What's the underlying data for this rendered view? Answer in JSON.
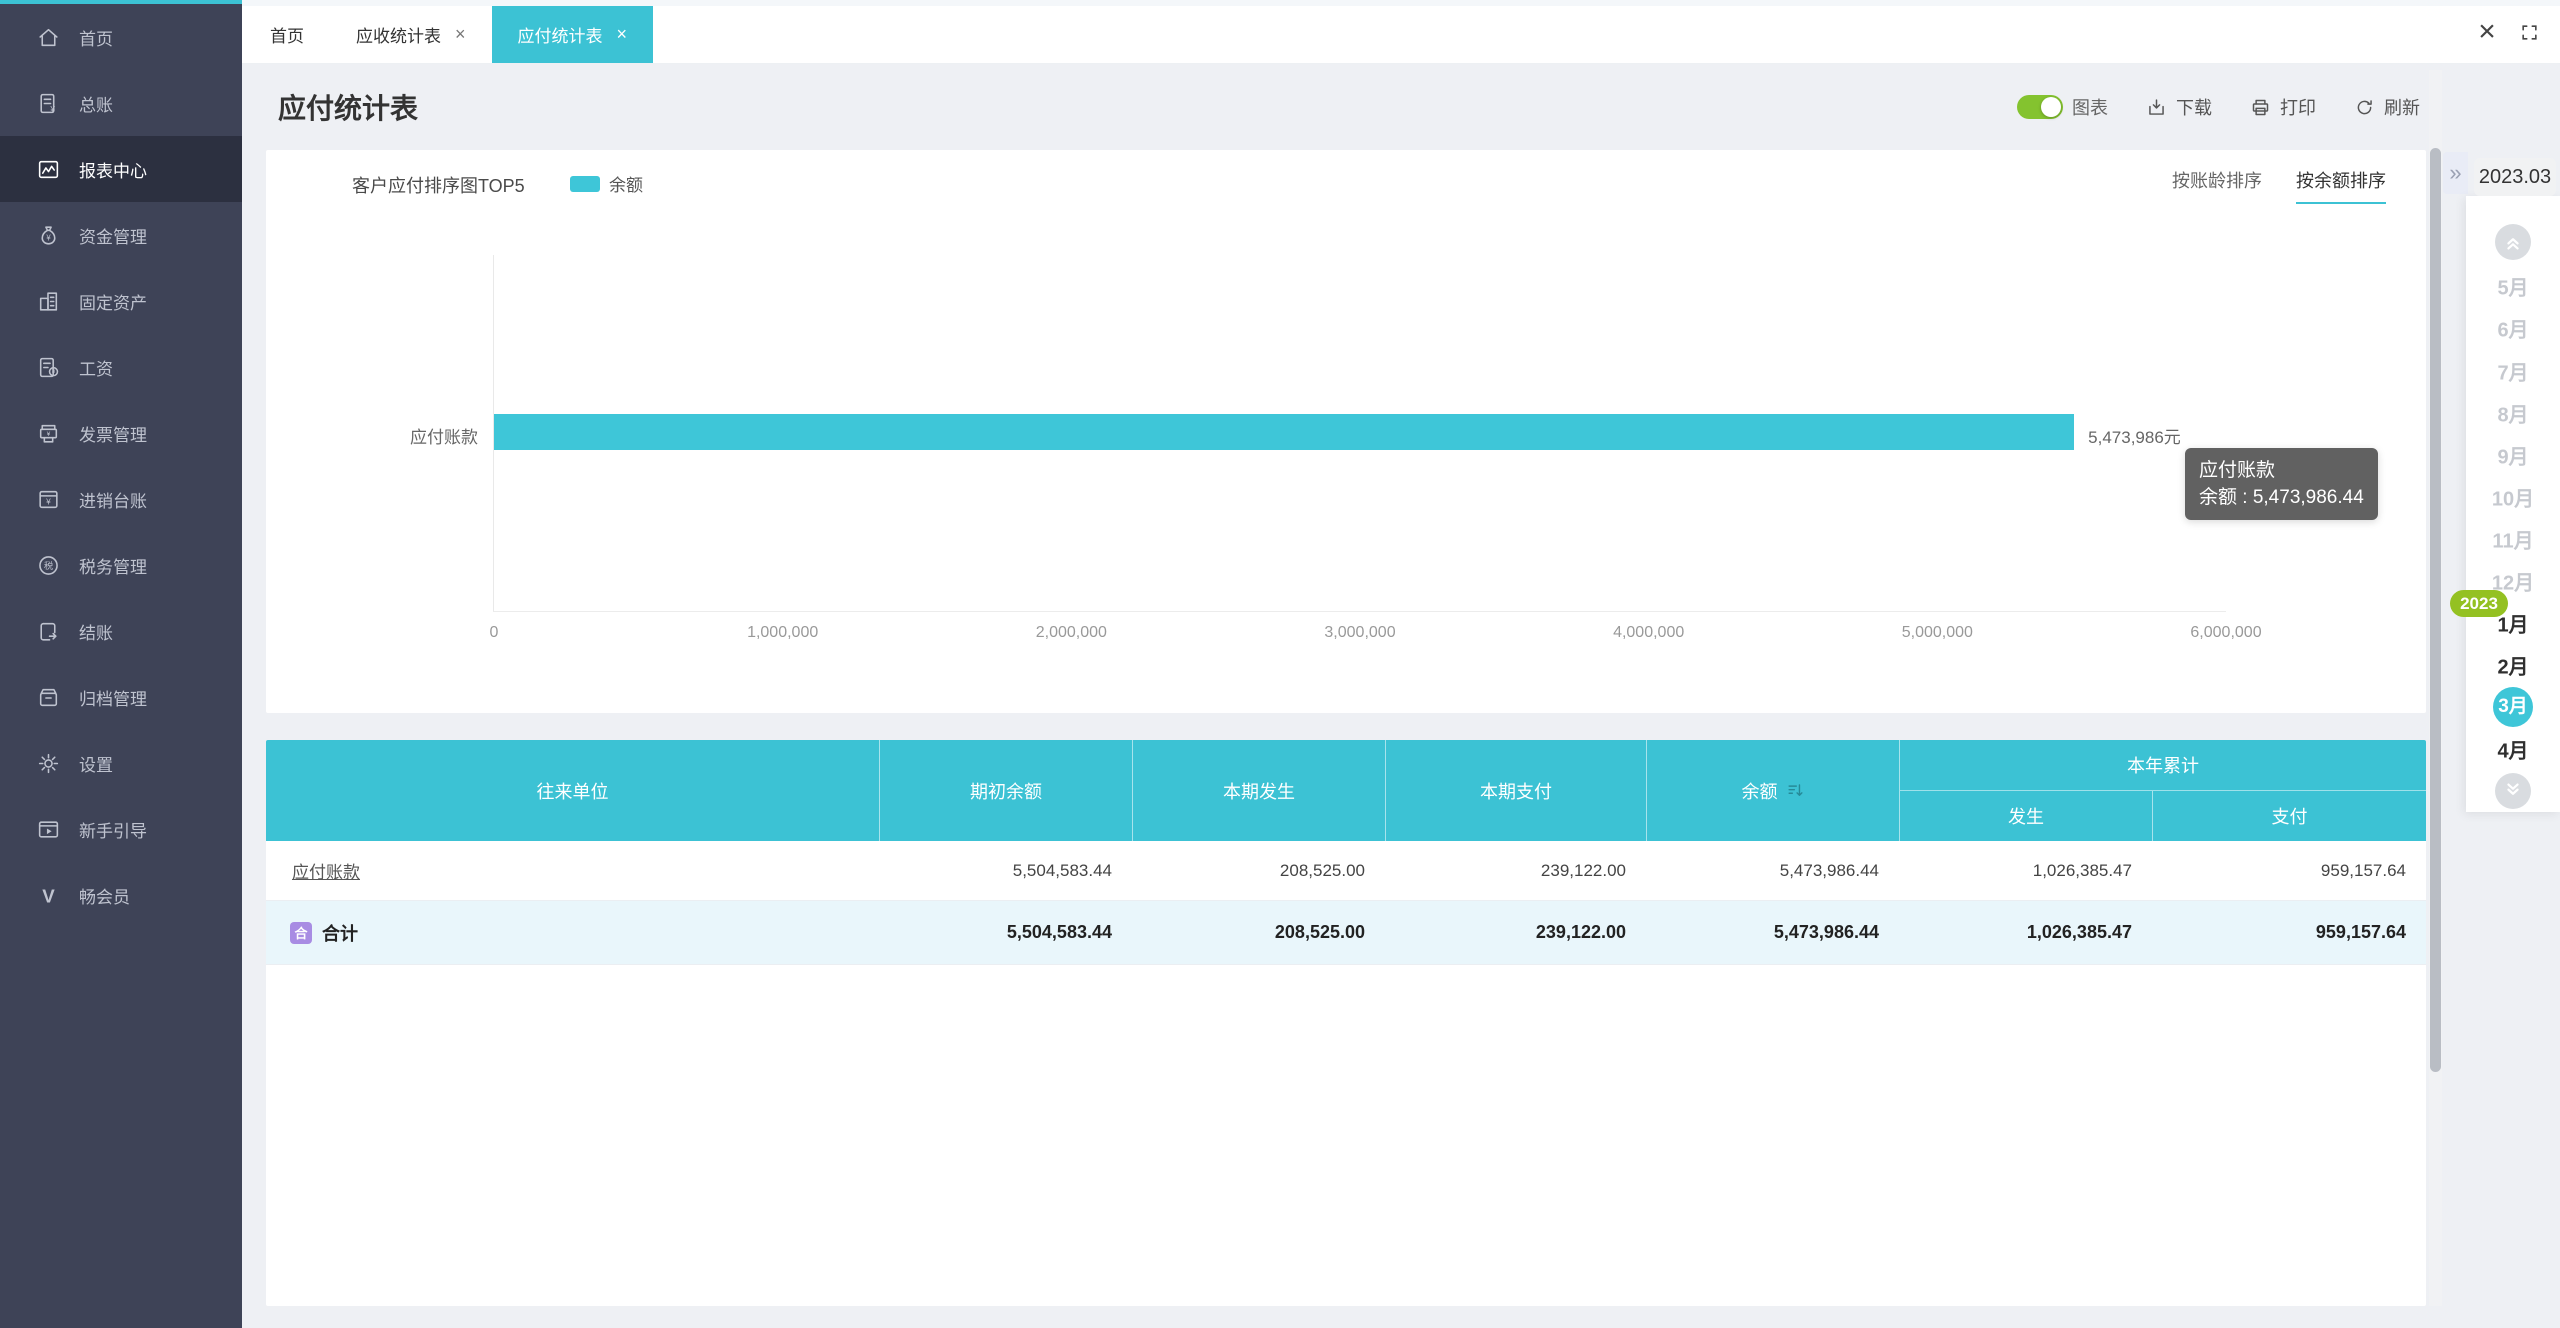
{
  "app": {
    "colors": {
      "accent": "#3cc2d4",
      "bar": "#3ec6d8",
      "toggle_green": "#84c32f",
      "badge_green": "#94c122",
      "purple": "#a88ce3",
      "sidebar_bg": "#3e4357",
      "sidebar_active_bg": "#2c3040",
      "tooltip_bg": "rgba(58,58,58,0.8)",
      "total_row_bg": "#e9f6fb"
    }
  },
  "glyphs": {
    "close": "×",
    "collapse": "»"
  },
  "sidebar": {
    "items": [
      {
        "label": "首页",
        "icon": "home-icon",
        "active": false
      },
      {
        "label": "总账",
        "icon": "general-ledger-icon",
        "active": false
      },
      {
        "label": "报表中心",
        "icon": "report-center-icon",
        "active": true
      },
      {
        "label": "资金管理",
        "icon": "funds-management-icon",
        "active": false
      },
      {
        "label": "固定资产",
        "icon": "fixed-assets-icon",
        "active": false
      },
      {
        "label": "工资",
        "icon": "salary-icon",
        "active": false
      },
      {
        "label": "发票管理",
        "icon": "invoice-management-icon",
        "active": false
      },
      {
        "label": "进销台账",
        "icon": "purchase-sales-ledger-icon",
        "active": false
      },
      {
        "label": "税务管理",
        "icon": "tax-management-icon",
        "active": false
      },
      {
        "label": "结账",
        "icon": "closing-icon",
        "active": false
      },
      {
        "label": "归档管理",
        "icon": "archive-management-icon",
        "active": false
      },
      {
        "label": "设置",
        "icon": "settings-icon",
        "active": false
      },
      {
        "label": "新手引导",
        "icon": "beginner-guide-icon",
        "active": false
      },
      {
        "label": "畅会员",
        "icon": "member-icon",
        "active": false
      }
    ]
  },
  "tabs": [
    {
      "label": "首页",
      "closable": false,
      "active": false
    },
    {
      "label": "应收统计表",
      "closable": true,
      "active": false
    },
    {
      "label": "应付统计表",
      "closable": true,
      "active": true
    }
  ],
  "page": {
    "title": "应付统计表"
  },
  "toolbar": {
    "chart_toggle_label": "图表",
    "chart_toggle_state": "on",
    "download": "下载",
    "print": "打印",
    "refresh": "刷新"
  },
  "chart": {
    "sort_by_age": "按账龄排序",
    "sort_by_balance": "按余额排序",
    "active_sort": "按余额排序"
  },
  "chart_data": {
    "type": "bar",
    "orientation": "horizontal",
    "title": "客户应付排序图TOP5",
    "legend": [
      {
        "label": "余额",
        "color": "#3ec6d8"
      }
    ],
    "legend_position": "top",
    "categories": [
      "应付账款"
    ],
    "series": [
      {
        "name": "余额",
        "values": [
          5473986.44
        ]
      }
    ],
    "value_labels": [
      "5,473,986元"
    ],
    "xlim": [
      0,
      6000000
    ],
    "xticks": [
      0,
      1000000,
      2000000,
      3000000,
      4000000,
      5000000,
      6000000
    ],
    "xtick_labels": [
      "0",
      "1,000,000",
      "2,000,000",
      "3,000,000",
      "4,000,000",
      "5,000,000",
      "6,000,000"
    ],
    "grid": false,
    "tooltip": {
      "title": "应付账款",
      "text": "余额 : 5,473,986.44"
    }
  },
  "table": {
    "headers": {
      "unit": "往来单位",
      "opening_balance": "期初余额",
      "current_incurred": "本期发生",
      "current_paid": "本期支付",
      "balance": "余额",
      "ytd_group": "本年累计",
      "ytd_incurred": "发生",
      "ytd_paid": "支付"
    },
    "rows": [
      {
        "unit": "应付账款",
        "opening_balance": "5,504,583.44",
        "current_incurred": "208,525.00",
        "current_paid": "239,122.00",
        "balance": "5,473,986.44",
        "ytd_incurred": "1,026,385.47",
        "ytd_paid": "959,157.64"
      }
    ],
    "total": {
      "label": "合计",
      "icon_glyph": "合",
      "opening_balance": "5,504,583.44",
      "current_incurred": "208,525.00",
      "current_paid": "239,122.00",
      "balance": "5,473,986.44",
      "ytd_incurred": "1,026,385.47",
      "ytd_paid": "959,157.64"
    }
  },
  "month_panel": {
    "current": "2023.03",
    "year_badge": "2023",
    "months": [
      {
        "label": "5月",
        "state": "disabled"
      },
      {
        "label": "6月",
        "state": "disabled"
      },
      {
        "label": "7月",
        "state": "disabled"
      },
      {
        "label": "8月",
        "state": "disabled"
      },
      {
        "label": "9月",
        "state": "disabled"
      },
      {
        "label": "10月",
        "state": "disabled"
      },
      {
        "label": "11月",
        "state": "disabled"
      },
      {
        "label": "12月",
        "state": "disabled"
      },
      {
        "label": "1月",
        "state": "normal"
      },
      {
        "label": "2月",
        "state": "normal"
      },
      {
        "label": "3月",
        "state": "active"
      },
      {
        "label": "4月",
        "state": "normal"
      }
    ]
  }
}
